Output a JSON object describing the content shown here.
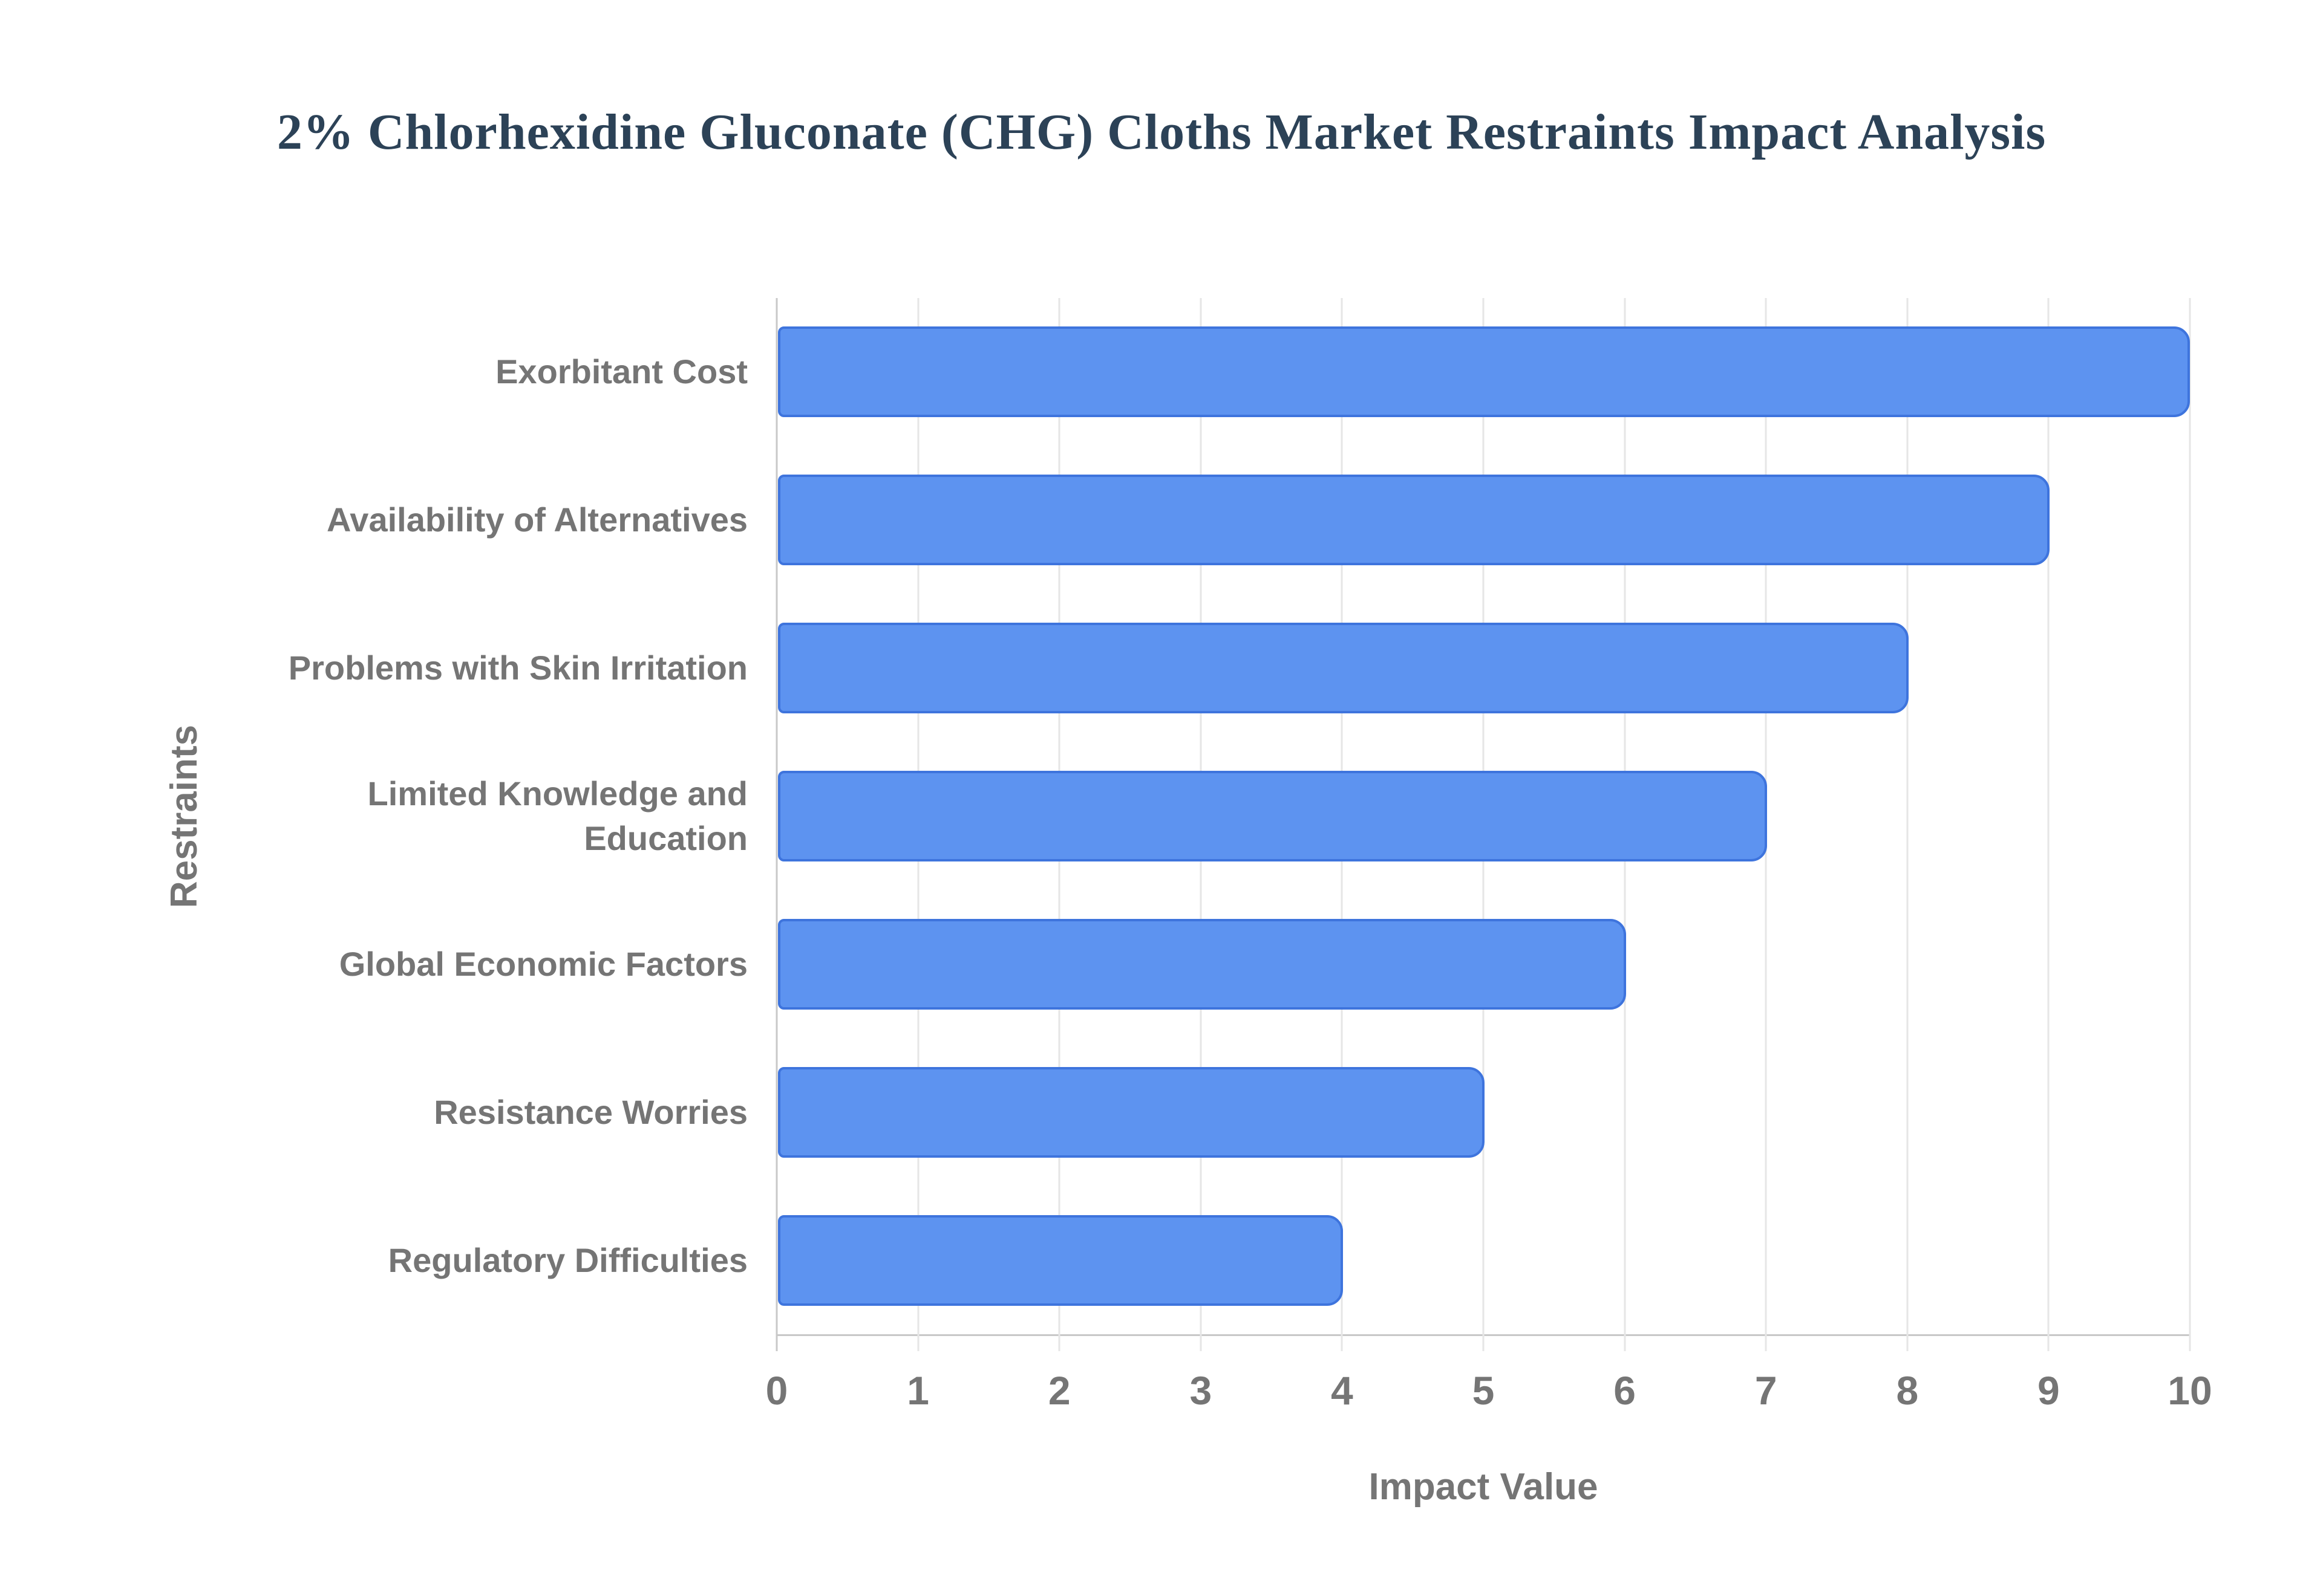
{
  "chart_data": {
    "type": "bar",
    "orientation": "horizontal",
    "title": "2% Chlorhexidine Gluconate (CHG) Cloths Market Restraints Impact Analysis",
    "categories": [
      "Exorbitant Cost",
      "Availability of Alternatives",
      "Problems with Skin Irritation",
      "Limited Knowledge and Education",
      "Global Economic Factors",
      "Resistance Worries",
      "Regulatory Difficulties"
    ],
    "y_labels": [
      "Exorbitant Cost",
      "Availability of Alternatives",
      "Problems with Skin Irritation",
      "Limited Knowledge and\nEducation",
      "Global Economic Factors",
      "Resistance Worries",
      "Regulatory Difficulties"
    ],
    "values": [
      10,
      9,
      8,
      7,
      6,
      5,
      4
    ],
    "xlabel": "Impact Value",
    "ylabel": "Restraints",
    "xlim": [
      0,
      10
    ],
    "xticks": [
      0,
      1,
      2,
      3,
      4,
      5,
      6,
      7,
      8,
      9,
      10
    ],
    "grid": "vertical-only",
    "legend": "none",
    "colors": {
      "bar_fill": "#5d93f0",
      "bar_border": "#3e74dd",
      "title_text": "#2c4257",
      "axis_text": "#757575",
      "gridline": "#e6e6e6",
      "axis_line": "#c8c8c8",
      "background": "#ffffff"
    }
  }
}
